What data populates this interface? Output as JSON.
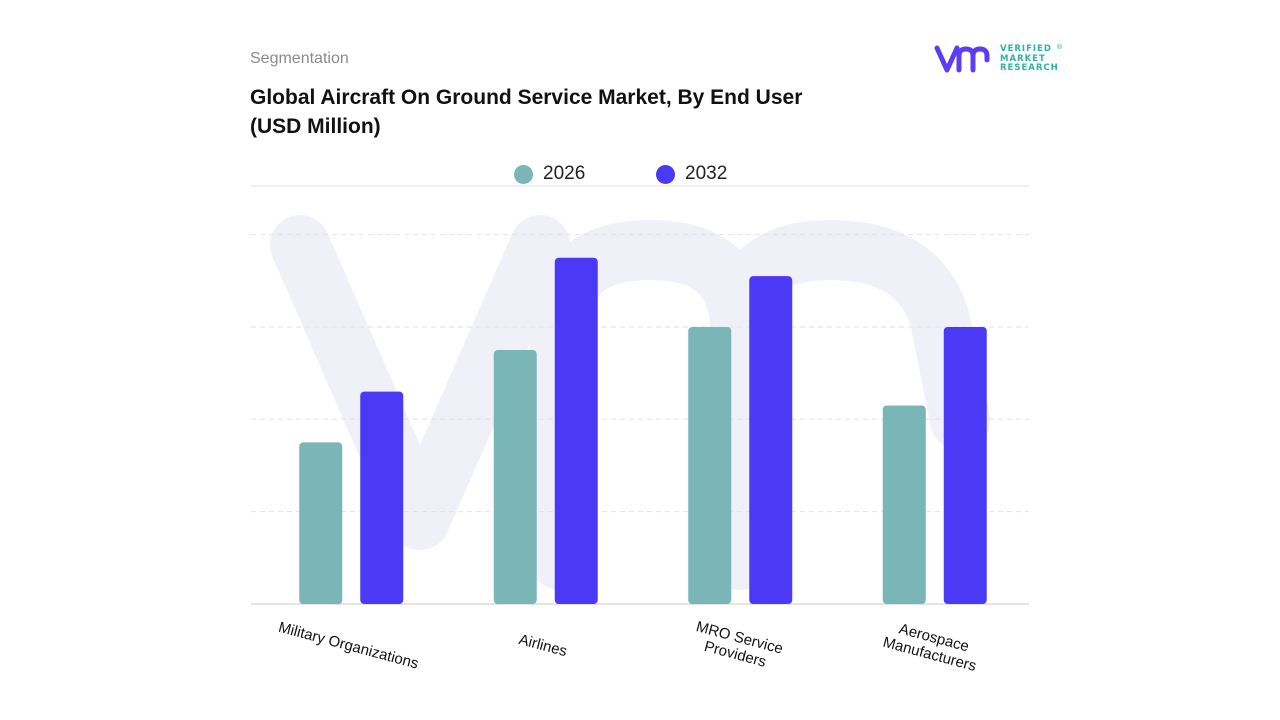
{
  "header": {
    "segment_label": "Segmentation",
    "title": "Global Aircraft On Ground Service Market, By End User (USD Million)"
  },
  "logo": {
    "icon": "vmr-logo-icon",
    "line1": "VERIFIED",
    "line2": "MARKET",
    "line3": "RESEARCH",
    "mark": "®"
  },
  "colors": {
    "series_2026": "#7ab5b8",
    "series_2032": "#4a3af5",
    "grid": "#e2e2e2",
    "watermark": "#f0f1f8"
  },
  "chart_data": {
    "type": "bar",
    "categories": [
      "Military Organizations",
      "Airlines",
      "MRO Service Providers",
      "Aerospace Manufacturers"
    ],
    "category_lines": [
      [
        "Military Organizations"
      ],
      [
        "Airlines"
      ],
      [
        "MRO Service",
        "Providers"
      ],
      [
        "Aerospace",
        "Manufacturers"
      ]
    ],
    "series": [
      {
        "name": "2026",
        "values": [
          35,
          55,
          60,
          43
        ]
      },
      {
        "name": "2032",
        "values": [
          46,
          75,
          71,
          60
        ]
      }
    ],
    "ylim": [
      0,
      81
    ],
    "y_ticks_unlabeled": [
      20,
      40,
      60,
      80
    ],
    "grid": true,
    "legend_position": "top-center",
    "axis_labels_rotated": true
  }
}
